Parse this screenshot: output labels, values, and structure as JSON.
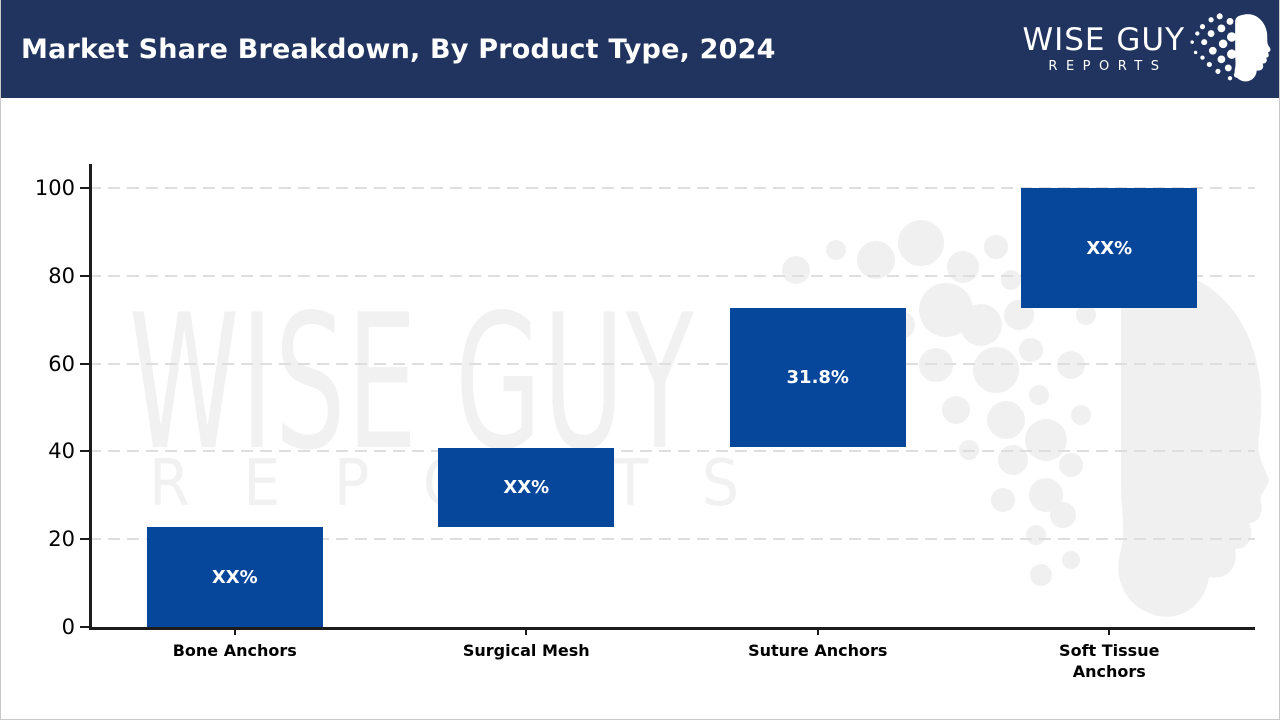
{
  "header": {
    "title": "Market Share Breakdown, By Product Type, 2024",
    "logo": {
      "brand": "WISE GUY",
      "sub": "REPORTS"
    }
  },
  "watermark": {
    "line1": "WISE GUY",
    "line2": "REPORTS"
  },
  "chart_data": {
    "type": "bar",
    "subtype": "waterfall-floating-bars",
    "title": "Market Share Breakdown, By Product Type, 2024",
    "categories": [
      "Bone Anchors",
      "Surgical Mesh",
      "Suture Anchors",
      "Soft Tissue Anchors"
    ],
    "bars": [
      {
        "category": "Bone Anchors",
        "start": 0,
        "end": 22.7,
        "segment": 22.7,
        "label": "XX%"
      },
      {
        "category": "Surgical Mesh",
        "start": 22.7,
        "end": 40.9,
        "segment": 18.2,
        "label": "XX%"
      },
      {
        "category": "Suture Anchors",
        "start": 40.9,
        "end": 72.7,
        "segment": 31.8,
        "label": "31.8%"
      },
      {
        "category": "Soft Tissue Anchors",
        "start": 72.7,
        "end": 100,
        "segment": 27.3,
        "label": "XX%"
      }
    ],
    "xlabel": "",
    "ylabel": "",
    "ylim": [
      0,
      105.5
    ],
    "yticks": [
      0,
      20,
      40,
      60,
      80,
      100
    ],
    "grid": "horizontal-dashed",
    "legend": "none"
  },
  "colors": {
    "header_bg": "#20345f",
    "bar": "#07479b",
    "bar_label": "#ffffff",
    "axis": "#1c1c1c",
    "grid": "#dedede",
    "watermark": "#f1f1f1",
    "frame_border": "#c9c9c9",
    "title_text": "#ffffff"
  }
}
